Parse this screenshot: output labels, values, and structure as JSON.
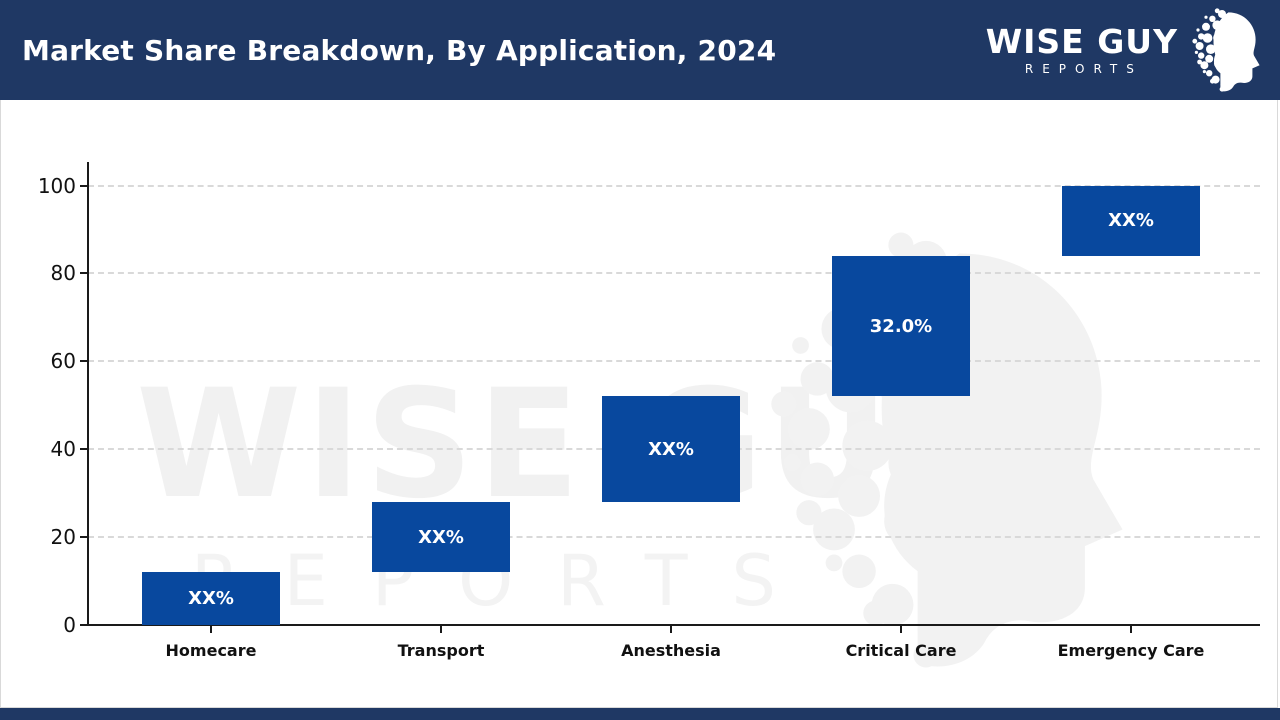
{
  "header": {
    "title": "Market Share Breakdown, By Application, 2024",
    "brand": {
      "line1": "WISE GUY",
      "line2": "REPORTS"
    }
  },
  "watermark": {
    "line1": "WISE GUY",
    "line2": "REPORTS"
  },
  "colors": {
    "header_bg": "#1f3864",
    "bar": "#08489e",
    "bar_label": "#ffffff",
    "grid": "#d9d9d9",
    "axis": "#1a1a1a",
    "watermark": "#f2f2f2"
  },
  "chart_data": {
    "type": "bar",
    "subtype": "floating-waterfall",
    "title": "Market Share Breakdown, By Application, 2024",
    "xlabel": "",
    "ylabel": "",
    "ylim": [
      0,
      105
    ],
    "yticks": [
      0,
      20,
      40,
      60,
      80,
      100
    ],
    "grid": "horizontal dashed at yticks above 0",
    "legend": "none",
    "categories": [
      "Homecare",
      "Transport",
      "Anesthesia",
      "Critical Care",
      "Emergency Care"
    ],
    "series": [
      {
        "name": "Market Share",
        "segments": [
          {
            "category": "Homecare",
            "start": 0,
            "end": 12,
            "value": 12,
            "label": "XX%"
          },
          {
            "category": "Transport",
            "start": 12,
            "end": 28,
            "value": 16,
            "label": "XX%"
          },
          {
            "category": "Anesthesia",
            "start": 28,
            "end": 52,
            "value": 24,
            "label": "XX%"
          },
          {
            "category": "Critical Care",
            "start": 52,
            "end": 84,
            "value": 32,
            "label": "32.0%"
          },
          {
            "category": "Emergency Care",
            "start": 84,
            "end": 100,
            "value": 16,
            "label": "XX%"
          }
        ]
      }
    ]
  }
}
